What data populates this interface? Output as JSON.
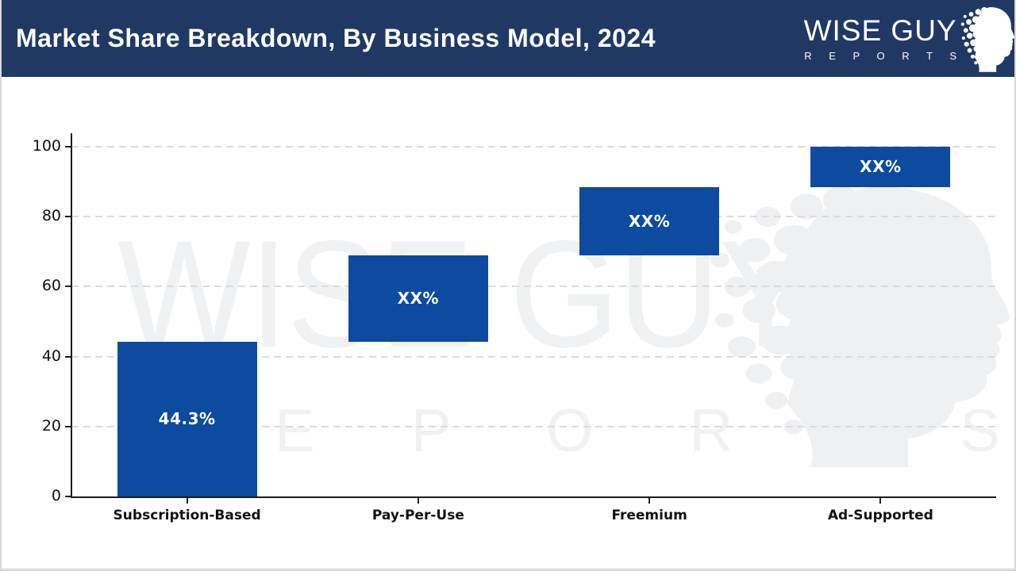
{
  "header": {
    "background": "#203864",
    "title": "Market Share Breakdown, By Business Model, 2024",
    "logo": {
      "line1": "WISE GUY",
      "line2": "R E P O R T S"
    }
  },
  "watermark": {
    "line1": "WISE GUY",
    "line2": "R E P O R T S"
  },
  "chart_data": {
    "type": "bar",
    "subtype": "waterfall",
    "title": "Market Share Breakdown, By Business Model, 2024",
    "categories": [
      "Subscription-Based",
      "Pay-Per-Use",
      "Freemium",
      "Ad-Supported"
    ],
    "segments": [
      {
        "category": "Subscription-Based",
        "start": 0,
        "end": 44.3,
        "label": "44.3%"
      },
      {
        "category": "Pay-Per-Use",
        "start": 44.3,
        "end": 69.0,
        "label": "XX%"
      },
      {
        "category": "Freemium",
        "start": 69.0,
        "end": 88.5,
        "label": "XX%"
      },
      {
        "category": "Ad-Supported",
        "start": 88.5,
        "end": 100,
        "label": "XX%"
      }
    ],
    "ylim": [
      0,
      100
    ],
    "yticks": [
      0,
      20,
      40,
      60,
      80,
      100
    ],
    "grid": "horizontal-dashed",
    "legend": "none",
    "bar_color": "#0c4b9f",
    "bar_label_color": "#ffffff",
    "axis_color": "#1a1a1a",
    "gridline_color": "#dcdcdc"
  }
}
